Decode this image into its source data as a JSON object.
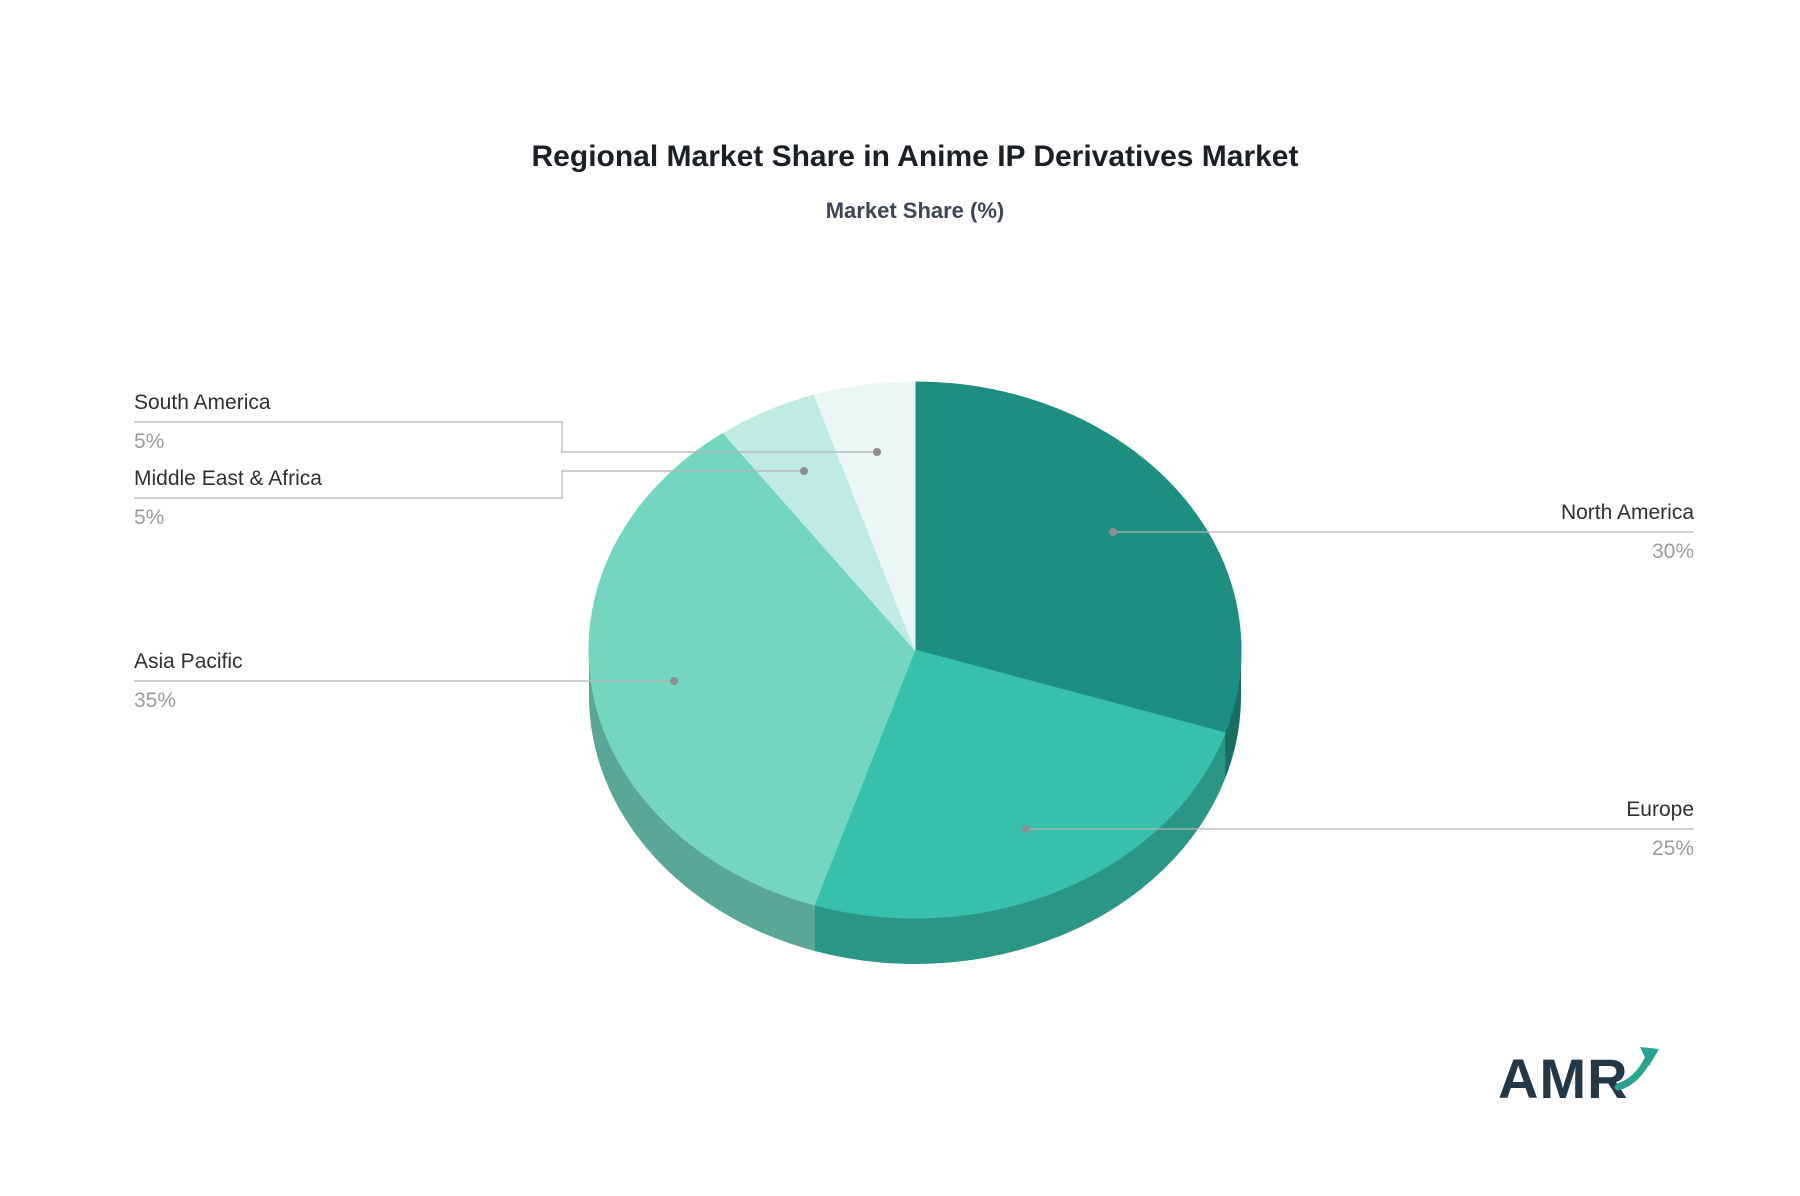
{
  "chart_data": {
    "type": "pie",
    "title": "Regional Market Share in Anime IP Derivatives Market",
    "subtitle": "Market Share (%)",
    "categories": [
      "North America",
      "Europe",
      "Asia Pacific",
      "Middle East & Africa",
      "South America"
    ],
    "values": [
      30,
      25,
      35,
      5,
      5
    ],
    "display_values": [
      "30%",
      "25%",
      "35%",
      "5%",
      "5%"
    ],
    "colors": [
      "#1e8e80",
      "#37c0ab",
      "#74d6c1",
      "#c0ebe2",
      "#eaf7f4"
    ],
    "start_angle_deg": -90,
    "direction": "clockwise",
    "style": "3d",
    "legend_position": "none",
    "leader_line_color": "#b3b3b3",
    "leader_dot_color": "#8f8f8f",
    "label_name_color": "#303030",
    "label_value_color": "#9c9c9c"
  },
  "branding": {
    "logo_text": "AMR",
    "logo_text_color": "#243746",
    "logo_arrow_color": "#2aa491"
  }
}
